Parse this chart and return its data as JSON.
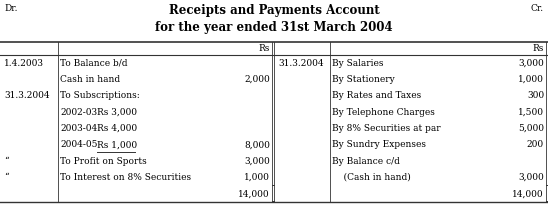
{
  "title_line1": "Receipts and Payments Account",
  "title_line2": "for the year ended 31st March 2004",
  "dr_label": "Dr.",
  "cr_label": "Cr.",
  "left_rows": [
    {
      "date": "1.4.2003",
      "description": "To Balance b/d",
      "sub1": "",
      "sub2": "",
      "amount": ""
    },
    {
      "date": "",
      "description": "Cash in hand",
      "sub1": "",
      "sub2": "",
      "amount": "2,000"
    },
    {
      "date": "31.3.2004",
      "description": "To Subscriptions:",
      "sub1": "",
      "sub2": "",
      "amount": ""
    },
    {
      "date": "",
      "description": "",
      "sub1": "2002-03",
      "sub2": "Rs 3,000",
      "amount": ""
    },
    {
      "date": "",
      "description": "",
      "sub1": "2003-04",
      "sub2": "Rs 4,000",
      "amount": ""
    },
    {
      "date": "",
      "description": "",
      "sub1": "2004-05",
      "sub2": "Rs 1,000",
      "amount": "8,000",
      "underline": true
    },
    {
      "date": "“",
      "description": "To Profit on Sports",
      "sub1": "",
      "sub2": "",
      "amount": "3,000"
    },
    {
      "date": "“",
      "description": "To Interest on 8% Securities",
      "sub1": "",
      "sub2": "",
      "amount": "1,000"
    },
    {
      "date": "",
      "description": "",
      "sub1": "",
      "sub2": "",
      "amount": "14,000",
      "total": true
    }
  ],
  "right_rows": [
    {
      "date": "31.3.2004",
      "description": "By Salaries",
      "amount": "3,000"
    },
    {
      "date": "",
      "description": "By Stationery",
      "amount": "1,000"
    },
    {
      "date": "",
      "description": "By Rates and Taxes",
      "amount": "300"
    },
    {
      "date": "",
      "description": "By Telephone Charges",
      "amount": "1,500"
    },
    {
      "date": "",
      "description": "By 8% Securities at par",
      "amount": "5,000"
    },
    {
      "date": "",
      "description": "By Sundry Expenses",
      "amount": "200"
    },
    {
      "date": "",
      "description": "By Balance c/d",
      "amount": ""
    },
    {
      "date": "",
      "description": "    (Cash in hand)",
      "amount": "3,000"
    },
    {
      "date": "",
      "description": "",
      "amount": "14,000",
      "total": true
    }
  ],
  "bg_color": "#ffffff",
  "line_color": "#333333",
  "font_size": 6.5,
  "title_font_size": 8.5
}
